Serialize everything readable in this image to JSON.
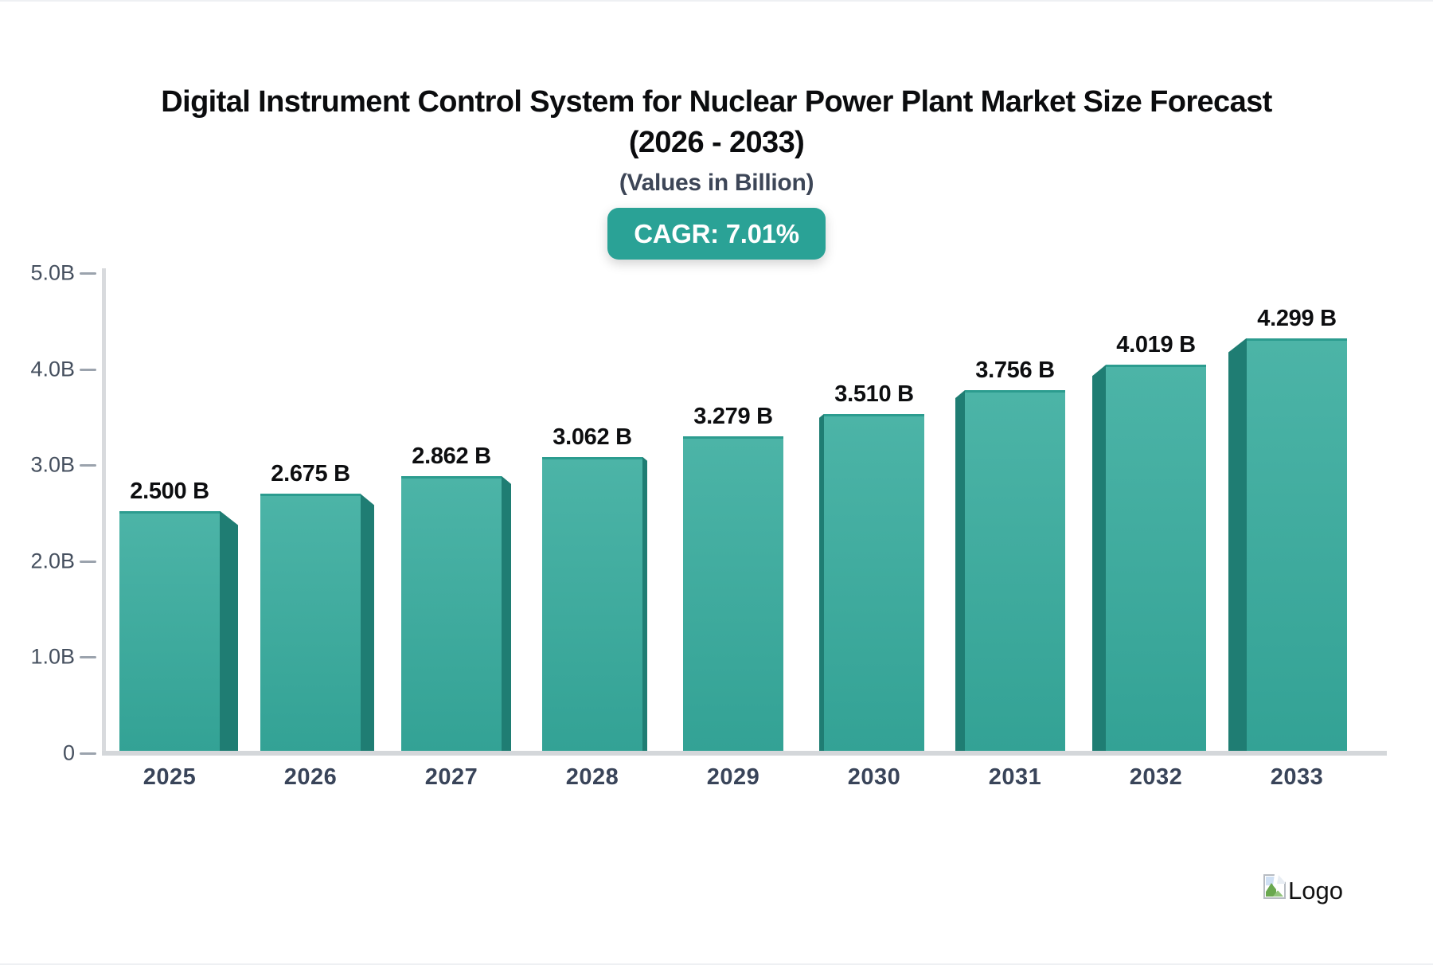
{
  "header": {
    "title_line1": "Digital Instrument Control System for Nuclear Power Plant Market Size Forecast",
    "title_line2": "(2026 - 2033)",
    "subtitle": "(Values in Billion)",
    "cagr_label": "CAGR: 7.01%"
  },
  "chart_data": {
    "type": "bar",
    "title": "Digital Instrument Control System for Nuclear Power Plant Market Size Forecast (2026 - 2033)",
    "subtitle": "(Values in Billion)",
    "cagr_pct": 7.01,
    "categories": [
      "2025",
      "2026",
      "2027",
      "2028",
      "2029",
      "2030",
      "2031",
      "2032",
      "2033"
    ],
    "values": [
      2.5,
      2.675,
      2.862,
      3.062,
      3.279,
      3.51,
      3.756,
      4.019,
      4.299
    ],
    "value_labels": [
      "2.500 B",
      "2.675 B",
      "2.862 B",
      "3.062 B",
      "3.279 B",
      "3.510 B",
      "3.756 B",
      "4.019 B",
      "4.299 B"
    ],
    "xlabel": "",
    "ylabel": "",
    "ylim": [
      0,
      5
    ],
    "yticks": [
      {
        "value": 5,
        "label": "5.0B"
      },
      {
        "value": 4,
        "label": "4.0B"
      },
      {
        "value": 3,
        "label": "3.0B"
      },
      {
        "value": 2,
        "label": "2.0B"
      },
      {
        "value": 1,
        "label": "1.0B"
      },
      {
        "value": 0,
        "label": "0"
      }
    ],
    "grid": false,
    "legend": "none",
    "bar_style": "3d-teal"
  },
  "colors": {
    "bar_top": "#4cb4a7",
    "bar_bottom": "#33a295",
    "bar_edge": "#2c9c8f",
    "bar_side": "#1f7d73",
    "badge_bg": "#2aa296",
    "axis_line": "#d8dadd",
    "tick_text": "#46505f",
    "year_text": "#394459"
  },
  "footer": {
    "logo_alt": "Logo"
  }
}
